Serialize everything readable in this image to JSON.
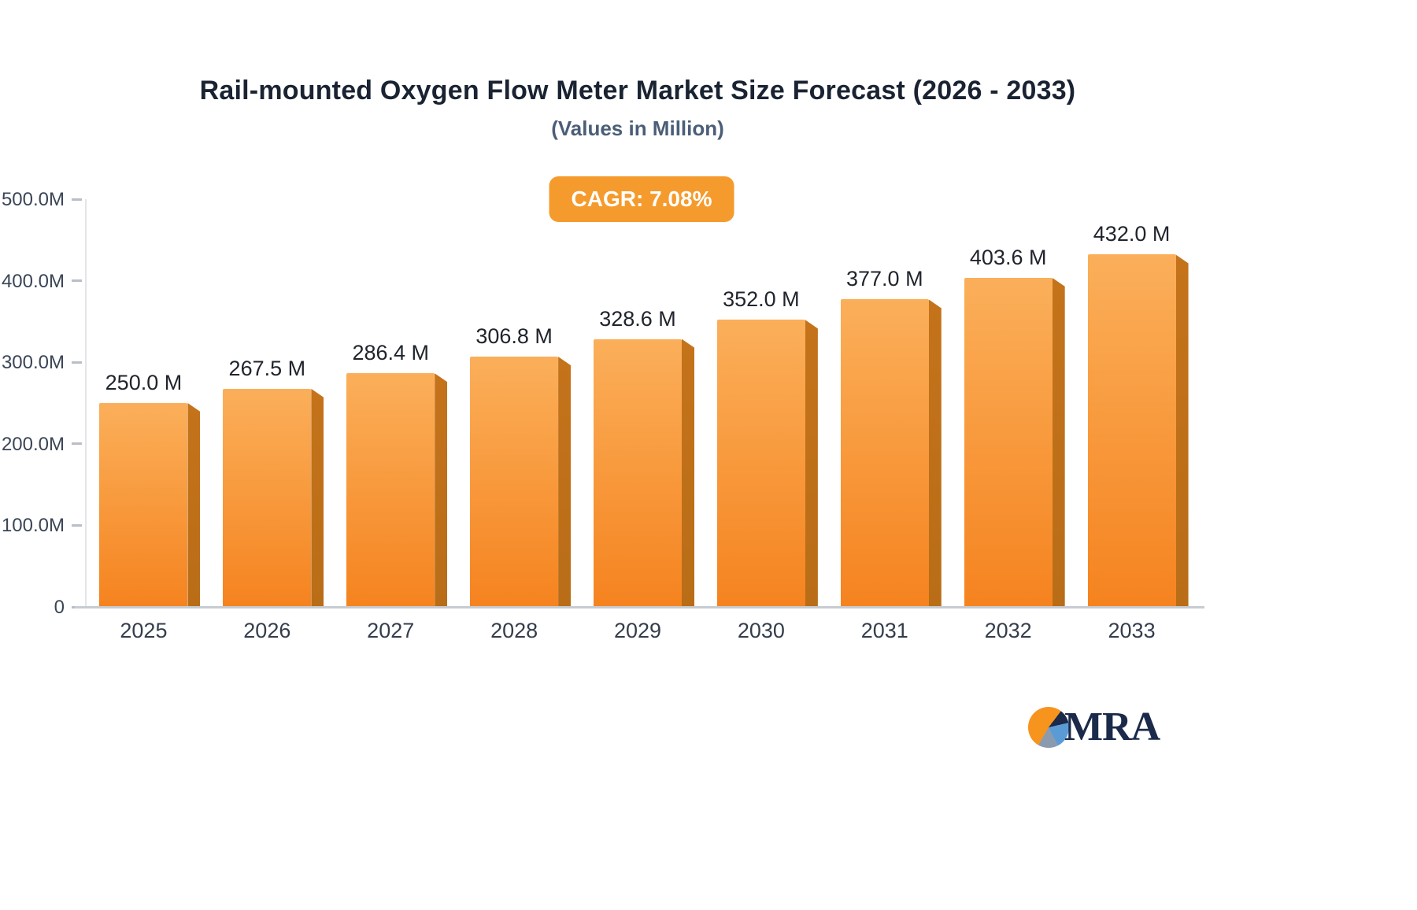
{
  "logo": {
    "text": "MRA"
  },
  "colors": {
    "title_text": "#1a2332",
    "subtitle_text": "#4b5e77",
    "badge_bg": "#f59b2d",
    "axis_text": "#3a4656",
    "bar_top": "#fbaf5a",
    "bar_bottom": "#f5831f",
    "bar_side": "#c4731a",
    "logo_orange": "#f7941e",
    "logo_navy": "#1b2a4a",
    "logo_blue": "#5b9bd5"
  },
  "chart_data": {
    "type": "bar",
    "title": "Rail-mounted Oxygen Flow Meter Market Size Forecast (2026 - 2033)",
    "subtitle": "(Values in Million)",
    "annotation": "CAGR: 7.08%",
    "categories": [
      "2025",
      "2026",
      "2027",
      "2028",
      "2029",
      "2030",
      "2031",
      "2032",
      "2033"
    ],
    "values": [
      250.0,
      267.5,
      286.4,
      306.8,
      328.6,
      352.0,
      377.0,
      403.6,
      432.0
    ],
    "value_labels": [
      "250.0 M",
      "267.5 M",
      "286.4 M",
      "306.8 M",
      "328.6 M",
      "352.0 M",
      "377.0 M",
      "403.6 M",
      "432.0 M"
    ],
    "xlabel": "",
    "ylabel": "",
    "ylim": [
      0,
      500
    ],
    "ytick_values": [
      0,
      100,
      200,
      300,
      400,
      500
    ],
    "ytick_labels": [
      "0",
      "100.0M",
      "200.0M",
      "300.0M",
      "400.0M",
      "500.0M"
    ],
    "grid": "off",
    "legend": "none"
  }
}
